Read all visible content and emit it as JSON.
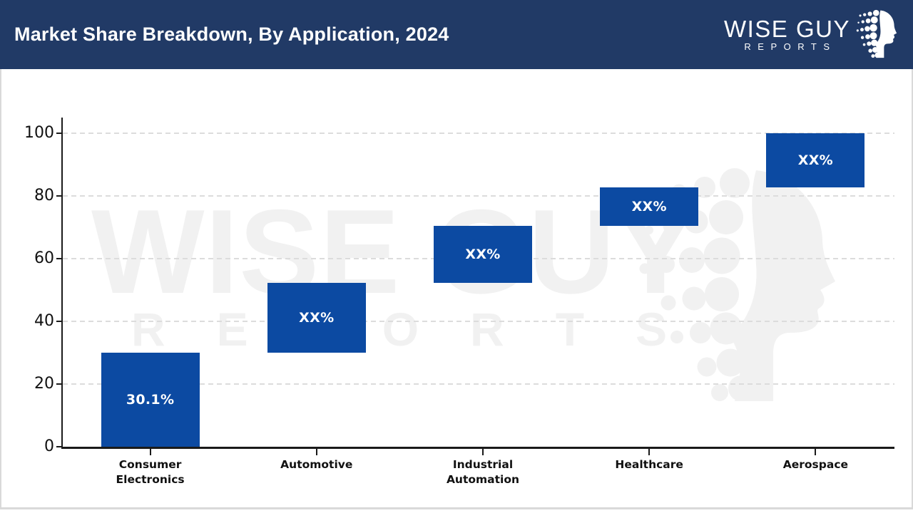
{
  "header": {
    "title": "Market Share Breakdown, By Application, 2024",
    "logo": {
      "wordmark": "WISE GUY",
      "subtitle": "REPORTS"
    }
  },
  "watermark": {
    "wordmark": "WISE GUY",
    "subtitle": "REPORTS"
  },
  "colors": {
    "header_bg": "#213A66",
    "title": "#FFFFFF",
    "bar": "#0C4AA2",
    "bar_label": "#FFFFFF",
    "axis": "#1A1A1A",
    "tick_label": "#111111",
    "grid": "#DCDCDC",
    "watermark": "#F1F1F1",
    "card_border": "#D9D9D9"
  },
  "chart_data": {
    "type": "bar",
    "subtype": "waterfall",
    "title": "Market Share Breakdown, By Application, 2024",
    "categories": [
      "Consumer Electronics",
      "Automotive",
      "Industrial Automation",
      "Healthcare",
      "Aerospace"
    ],
    "category_label_lines": [
      [
        "Consumer",
        "Electronics"
      ],
      [
        "Automotive"
      ],
      [
        "Industrial",
        "Automation"
      ],
      [
        "Healthcare"
      ],
      [
        "Aerospace"
      ]
    ],
    "segments": [
      {
        "category": "Consumer Electronics",
        "start": 0,
        "end": 30.1,
        "label": "30.1%"
      },
      {
        "category": "Automotive",
        "start": 30.1,
        "end": 52.3,
        "label": "XX%"
      },
      {
        "category": "Industrial Automation",
        "start": 52.3,
        "end": 70.5,
        "label": "XX%"
      },
      {
        "category": "Healthcare",
        "start": 70.5,
        "end": 82.7,
        "label": "XX%"
      },
      {
        "category": "Aerospace",
        "start": 82.7,
        "end": 100,
        "label": "XX%"
      }
    ],
    "y_ticks": [
      0,
      20,
      40,
      60,
      80,
      100
    ],
    "ylim": [
      0,
      105
    ],
    "xlabel": "",
    "ylabel": "",
    "grid": "horizontal-dashed",
    "legend": "none"
  }
}
